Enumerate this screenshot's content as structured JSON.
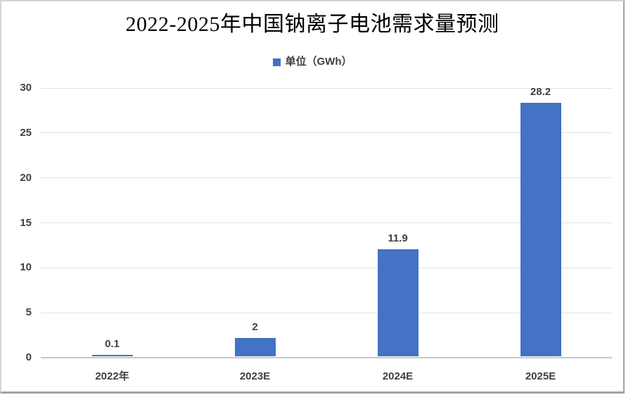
{
  "page": {
    "title": "2022-2025年中国钠离子电池需求量预测",
    "legend": {
      "label": "单位（GWh）",
      "swatch_color": "#4472C4"
    }
  },
  "chart_data": {
    "type": "bar",
    "title": "2022-2025年中国钠离子电池需求量预测",
    "legend": [
      "单位（GWh）"
    ],
    "legend_position": "top-center",
    "categories": [
      "2022年",
      "2023E",
      "2024E",
      "2025E"
    ],
    "values": [
      0.1,
      2,
      11.9,
      28.2
    ],
    "data_labels": [
      "0.1",
      "2",
      "11.9",
      "28.2"
    ],
    "xlabel": "",
    "ylabel": "",
    "ylim": [
      0,
      30
    ],
    "yticks": [
      0,
      5,
      10,
      15,
      20,
      25,
      30
    ],
    "grid": true,
    "colors": {
      "bar": "#4472C4",
      "gridline": "#E2E2E2",
      "axis_line": "#C8C8C8",
      "tick_label": "#404040",
      "data_label": "#404040",
      "category_label": "#404040",
      "legend_text": "#404040",
      "title": "#000000"
    }
  }
}
